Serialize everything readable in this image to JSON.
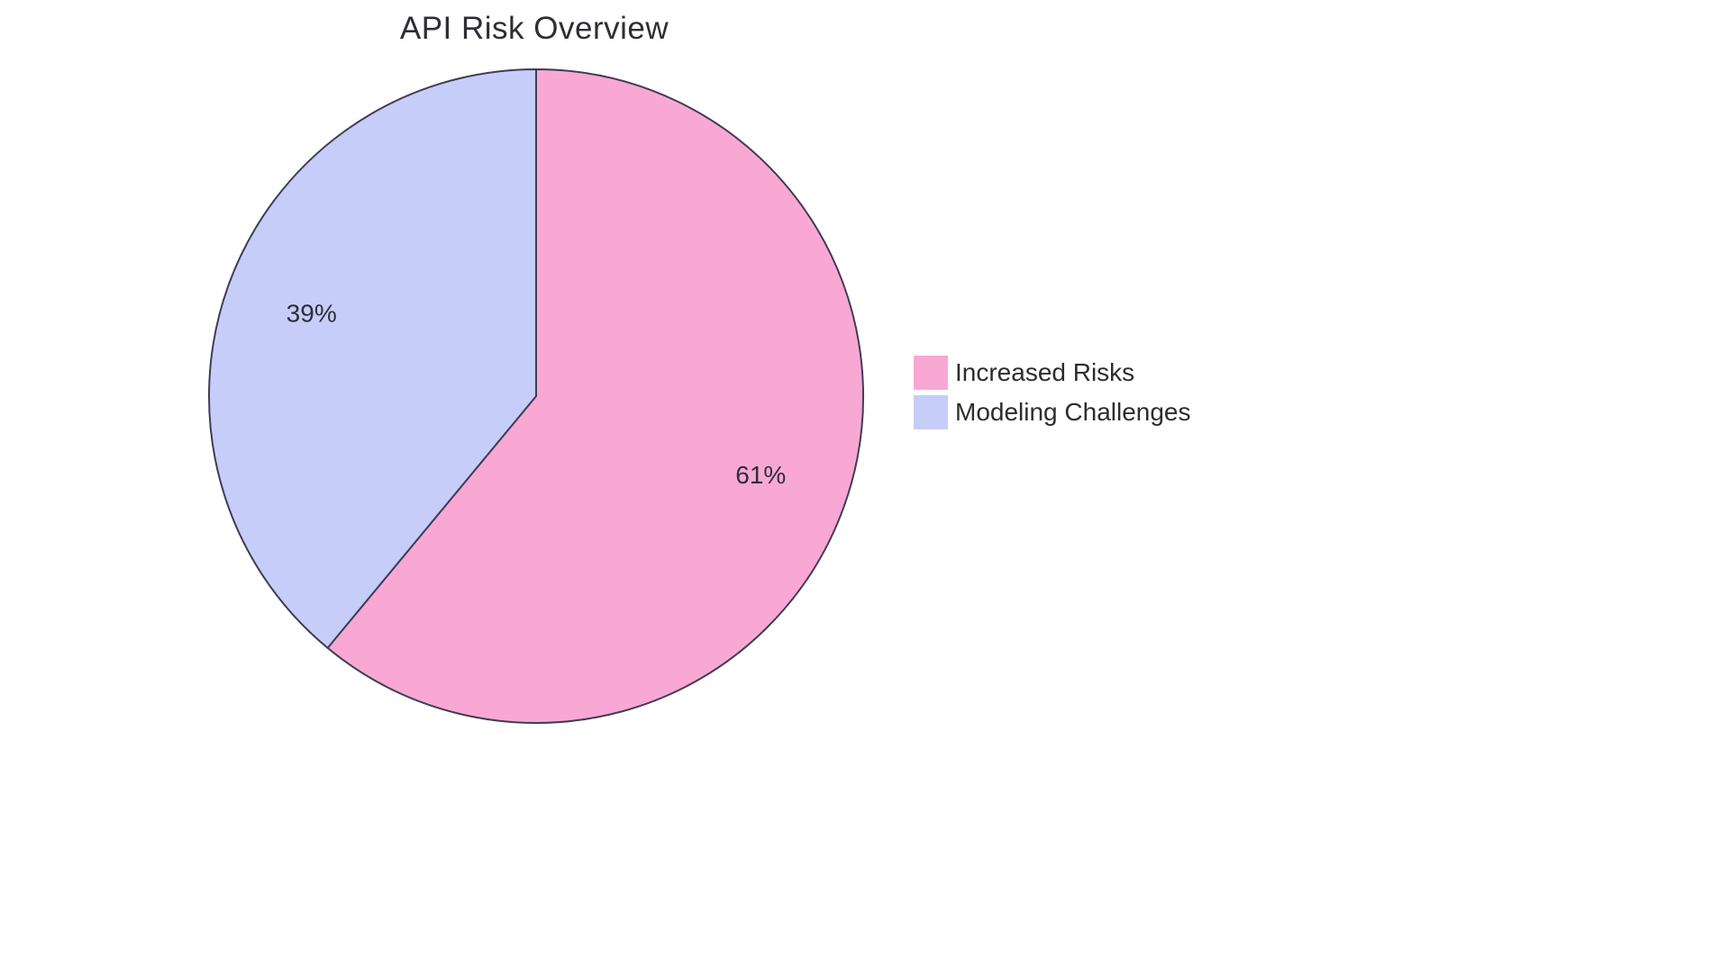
{
  "chart_data": {
    "type": "pie",
    "title": "API Risk Overview",
    "slices": [
      {
        "label": "Increased Risks",
        "value": 61,
        "display": "61%",
        "color": "#F9A8D4"
      },
      {
        "label": "Modeling Challenges",
        "value": 39,
        "display": "39%",
        "color": "#C7CDF9"
      }
    ],
    "stroke_color": "#3F3D56",
    "stroke_width": 2,
    "start_angle_deg": 0,
    "direction": "clockwise",
    "legend_position": "right",
    "label_radius_ratio": 0.73,
    "background": "#FFFFFF"
  }
}
